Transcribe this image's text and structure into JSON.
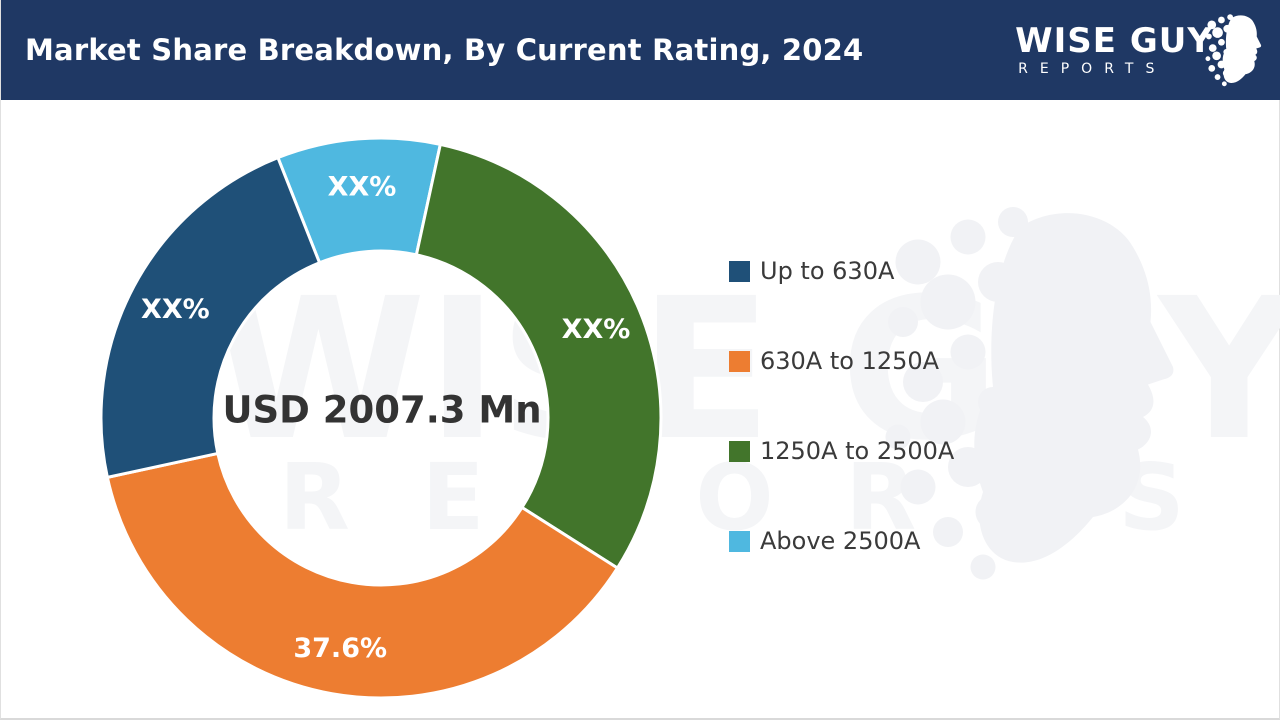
{
  "header": {
    "title": "Market Share Breakdown, By Current Rating, 2024",
    "logo": {
      "line1": "WISE GUY",
      "line2": "REPORTS"
    }
  },
  "watermark": {
    "line1": "WISE GUY",
    "line2": "REPORTS"
  },
  "chart_data": {
    "type": "donut",
    "title": "Market Share Breakdown, By Current Rating, 2024",
    "center_label": "USD 2007.3 Mn",
    "start_angle_deg": -21.6,
    "direction": "counterclockwise",
    "legend_position": "right",
    "segments": [
      {
        "name": "Up to 630A",
        "value": 22.4,
        "color": "#1F5078",
        "label": "XX%",
        "label_color": "#ffffff"
      },
      {
        "name": "630A to 1250A",
        "value": 37.6,
        "color": "#ED7D31",
        "label": "37.6%",
        "label_color": "#ffffff"
      },
      {
        "name": "1250A to 2500A",
        "value": 30.6,
        "color": "#42752B",
        "label": "XX%",
        "label_color": "#ffffff"
      },
      {
        "name": "Above 2500A",
        "value": 9.4,
        "color": "#4FB8E0",
        "label": "XX%",
        "label_color": "#ffffff"
      }
    ]
  }
}
